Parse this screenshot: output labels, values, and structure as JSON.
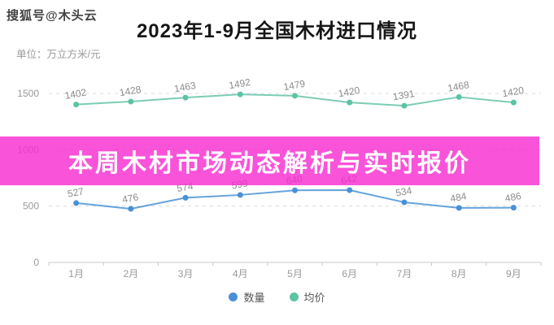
{
  "header": {
    "watermark": "搜狐号@木头云",
    "title": "2023年1-9月全国木材进口情况",
    "unit_label": "单位：万立方米/元"
  },
  "banner": {
    "text": "本周木材市场动态解析与实时报价",
    "color": "#f828d0",
    "opacity": 0.8
  },
  "chart_data": {
    "type": "line",
    "title": "2023年1-9月全国木材进口情况",
    "xlabel": "",
    "ylabel": "单位：万立方米/元",
    "categories": [
      "1月",
      "2月",
      "3月",
      "4月",
      "5月",
      "6月",
      "7月",
      "8月",
      "9月"
    ],
    "series": [
      {
        "name": "数量",
        "dot_color": "#4a90d8",
        "line_color": "#64a3dc",
        "values": [
          527,
          476,
          574,
          599,
          640,
          642,
          534,
          484,
          486
        ]
      },
      {
        "name": "均价",
        "dot_color": "#5cc3a5",
        "line_color": "#7cccb5",
        "values": [
          1402,
          1428,
          1463,
          1492,
          1479,
          1420,
          1391,
          1468,
          1420
        ]
      }
    ],
    "ylim": [
      0,
      1500
    ],
    "yticks": [
      0,
      500,
      1000,
      1500
    ],
    "grid": "horizontal-dashed",
    "legend_position": "bottom",
    "colors": {
      "grid_line": "#dcdcdc",
      "axis_line": "#c9c9c9",
      "tick_label": "#999999",
      "data_label": "#8c8c8c"
    }
  }
}
